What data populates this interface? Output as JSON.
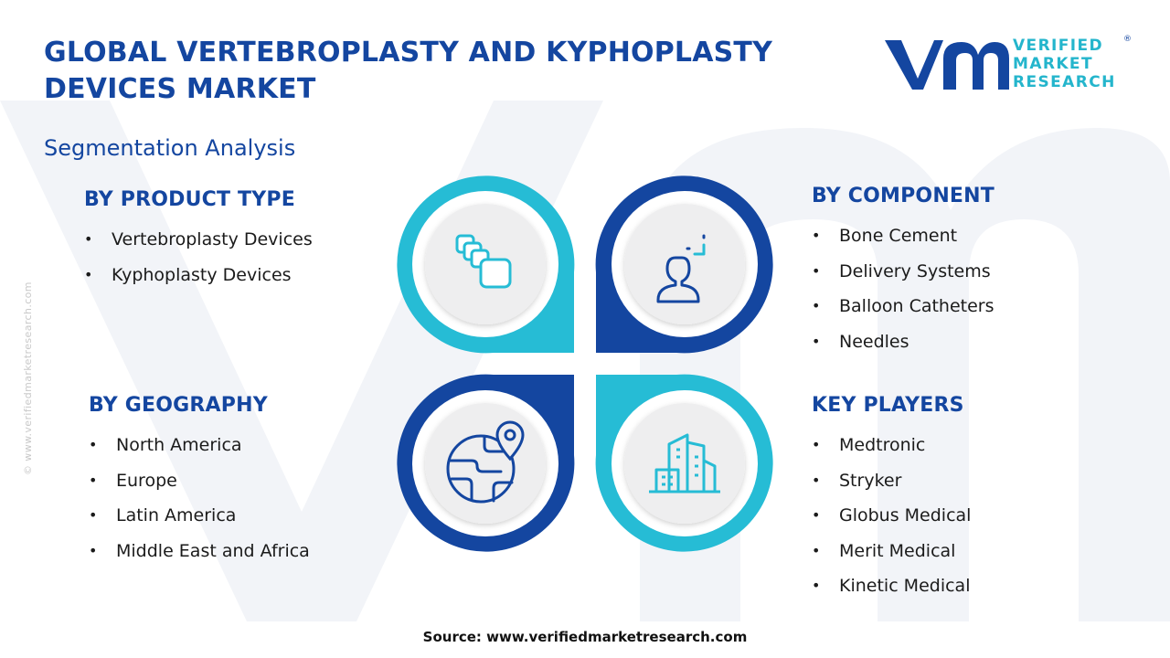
{
  "title": "GLOBAL VERTEBROPLASTY AND KYPHOPLASTY DEVICES MARKET",
  "subtitle": "Segmentation Analysis",
  "logo": {
    "line1": "VERIFIED",
    "line2": "MARKET",
    "line3": "RESEARCH",
    "registered": "®",
    "brand_dark": "#1446a0",
    "brand_light": "#24b5cc"
  },
  "side_watermark": "© www.verifiedmarketresearch.com",
  "segments": {
    "product_type": {
      "heading": "BY PRODUCT TYPE",
      "items": [
        "Vertebroplasty Devices",
        "Kyphoplasty Devices"
      ]
    },
    "component": {
      "heading": "BY COMPONENT",
      "items": [
        "Bone Cement",
        "Delivery Systems",
        "Balloon Catheters",
        "Needles"
      ]
    },
    "geography": {
      "heading": "BY GEOGRAPHY",
      "items": [
        "North America",
        "Europe",
        "Latin America",
        "Middle East and Africa"
      ]
    },
    "key_players": {
      "heading": "KEY PLAYERS",
      "items": [
        "Medtronic",
        "Stryker",
        "Globus Medical",
        "Merit Medical",
        "Kinetic Medical"
      ]
    }
  },
  "icons": {
    "top_left": "stacked-blocks-icon",
    "top_right": "person-focus-icon",
    "bottom_left": "globe-location-icon",
    "bottom_right": "city-buildings-icon"
  },
  "source": "Source: www.verifiedmarketresearch.com"
}
